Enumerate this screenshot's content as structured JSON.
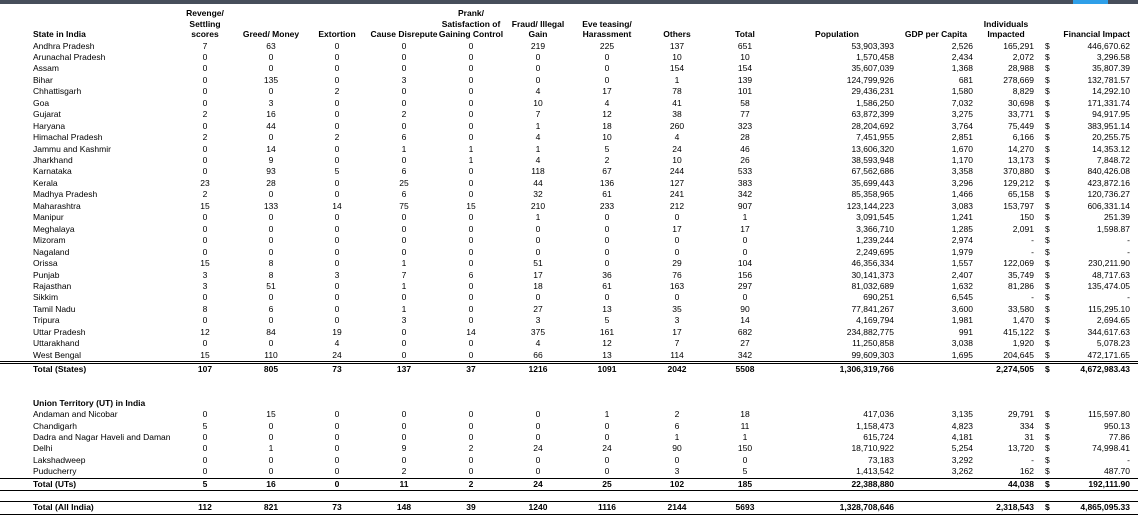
{
  "window": {
    "top_bar_color": "#474e5b",
    "scroll_thumb_color": "#2e9fe8"
  },
  "table": {
    "currency_symbol": "$",
    "columns": [
      {
        "key": "state",
        "label": "State in India"
      },
      {
        "key": "revenge-settling-scores",
        "label": "Revenge/ Settling\nscores"
      },
      {
        "key": "greed-money",
        "label": "Greed/ Money"
      },
      {
        "key": "extortion",
        "label": "Extortion"
      },
      {
        "key": "cause-disrepute",
        "label": "Cause Disrepute"
      },
      {
        "key": "prank-satisfaction-gaining-control",
        "label": "Prank/\nSatisfaction of\nGaining Control"
      },
      {
        "key": "fraud-illegal-gain",
        "label": "Fraud/ Illegal\nGain"
      },
      {
        "key": "eve-teasing-harassment",
        "label": "Eve teasing/\nHarassment"
      },
      {
        "key": "others",
        "label": "Others"
      },
      {
        "key": "total",
        "label": "Total"
      },
      {
        "key": "population",
        "label": "Population"
      },
      {
        "key": "gdp-per-capita",
        "label": "GDP per Capita"
      },
      {
        "key": "individuals-impacted",
        "label": "Individuals\nImpacted"
      },
      {
        "key": "financial-impact",
        "label": "Financial Impact"
      }
    ],
    "states_section": {
      "rows": [
        {
          "label": "Andhra Pradesh",
          "values": [
            "7",
            "63",
            "0",
            "0",
            "0",
            "219",
            "225",
            "137",
            "651",
            "53,903,393",
            "2,526",
            "165,291",
            "446,670.62"
          ]
        },
        {
          "label": "Arunachal Pradesh",
          "values": [
            "0",
            "0",
            "0",
            "0",
            "0",
            "0",
            "0",
            "10",
            "10",
            "1,570,458",
            "2,434",
            "2,072",
            "3,296.58"
          ]
        },
        {
          "label": "Assam",
          "values": [
            "0",
            "0",
            "0",
            "0",
            "0",
            "0",
            "0",
            "154",
            "154",
            "35,607,039",
            "1,368",
            "28,988",
            "35,807.39"
          ]
        },
        {
          "label": "Bihar",
          "values": [
            "0",
            "135",
            "0",
            "3",
            "0",
            "0",
            "0",
            "1",
            "139",
            "124,799,926",
            "681",
            "278,669",
            "132,781.57"
          ]
        },
        {
          "label": "Chhattisgarh",
          "values": [
            "0",
            "0",
            "2",
            "0",
            "0",
            "4",
            "17",
            "78",
            "101",
            "29,436,231",
            "1,580",
            "8,829",
            "14,292.10"
          ]
        },
        {
          "label": "Goa",
          "values": [
            "0",
            "3",
            "0",
            "0",
            "0",
            "10",
            "4",
            "41",
            "58",
            "1,586,250",
            "7,032",
            "30,698",
            "171,331.74"
          ]
        },
        {
          "label": "Gujarat",
          "values": [
            "2",
            "16",
            "0",
            "2",
            "0",
            "7",
            "12",
            "38",
            "77",
            "63,872,399",
            "3,275",
            "33,771",
            "94,917.95"
          ]
        },
        {
          "label": "Haryana",
          "values": [
            "0",
            "44",
            "0",
            "0",
            "0",
            "1",
            "18",
            "260",
            "323",
            "28,204,692",
            "3,764",
            "75,449",
            "383,951.14"
          ]
        },
        {
          "label": "Himachal Pradesh",
          "values": [
            "2",
            "0",
            "2",
            "6",
            "0",
            "4",
            "10",
            "4",
            "28",
            "7,451,955",
            "2,851",
            "6,166",
            "20,255.75"
          ]
        },
        {
          "label": "Jammu and Kashmir",
          "values": [
            "0",
            "14",
            "0",
            "1",
            "1",
            "1",
            "5",
            "24",
            "46",
            "13,606,320",
            "1,670",
            "14,270",
            "14,353.12"
          ]
        },
        {
          "label": "Jharkhand",
          "values": [
            "0",
            "9",
            "0",
            "0",
            "1",
            "4",
            "2",
            "10",
            "26",
            "38,593,948",
            "1,170",
            "13,173",
            "7,848.72"
          ]
        },
        {
          "label": "Karnataka",
          "values": [
            "0",
            "93",
            "5",
            "6",
            "0",
            "118",
            "67",
            "244",
            "533",
            "67,562,686",
            "3,358",
            "370,880",
            "840,426.08"
          ]
        },
        {
          "label": "Kerala",
          "values": [
            "23",
            "28",
            "0",
            "25",
            "0",
            "44",
            "136",
            "127",
            "383",
            "35,699,443",
            "3,296",
            "129,212",
            "423,872.16"
          ]
        },
        {
          "label": "Madhya Pradesh",
          "values": [
            "2",
            "0",
            "0",
            "6",
            "0",
            "32",
            "61",
            "241",
            "342",
            "85,358,965",
            "1,466",
            "65,158",
            "120,736.27"
          ]
        },
        {
          "label": "Maharashtra",
          "values": [
            "15",
            "133",
            "14",
            "75",
            "15",
            "210",
            "233",
            "212",
            "907",
            "123,144,223",
            "3,083",
            "153,797",
            "606,331.14"
          ]
        },
        {
          "label": "Manipur",
          "values": [
            "0",
            "0",
            "0",
            "0",
            "0",
            "1",
            "0",
            "0",
            "1",
            "3,091,545",
            "1,241",
            "150",
            "251.39"
          ]
        },
        {
          "label": "Meghalaya",
          "values": [
            "0",
            "0",
            "0",
            "0",
            "0",
            "0",
            "0",
            "17",
            "17",
            "3,366,710",
            "1,285",
            "2,091",
            "1,598.87"
          ]
        },
        {
          "label": "Mizoram",
          "values": [
            "0",
            "0",
            "0",
            "0",
            "0",
            "0",
            "0",
            "0",
            "0",
            "1,239,244",
            "2,974",
            "-",
            "-"
          ]
        },
        {
          "label": "Nagaland",
          "values": [
            "0",
            "0",
            "0",
            "0",
            "0",
            "0",
            "0",
            "0",
            "0",
            "2,249,695",
            "1,979",
            "-",
            "-"
          ]
        },
        {
          "label": "Orissa",
          "values": [
            "15",
            "8",
            "0",
            "1",
            "0",
            "51",
            "0",
            "29",
            "104",
            "46,356,334",
            "1,557",
            "122,069",
            "230,211.90"
          ]
        },
        {
          "label": "Punjab",
          "values": [
            "3",
            "8",
            "3",
            "7",
            "6",
            "17",
            "36",
            "76",
            "156",
            "30,141,373",
            "2,407",
            "35,749",
            "48,717.63"
          ]
        },
        {
          "label": "Rajasthan",
          "values": [
            "3",
            "51",
            "0",
            "1",
            "0",
            "18",
            "61",
            "163",
            "297",
            "81,032,689",
            "1,632",
            "81,286",
            "135,474.05"
          ]
        },
        {
          "label": "Sikkim",
          "values": [
            "0",
            "0",
            "0",
            "0",
            "0",
            "0",
            "0",
            "0",
            "0",
            "690,251",
            "6,545",
            "-",
            "-"
          ]
        },
        {
          "label": "Tamil Nadu",
          "values": [
            "8",
            "6",
            "0",
            "1",
            "0",
            "27",
            "13",
            "35",
            "90",
            "77,841,267",
            "3,600",
            "33,580",
            "115,295.10"
          ]
        },
        {
          "label": "Tripura",
          "values": [
            "0",
            "0",
            "0",
            "3",
            "0",
            "3",
            "5",
            "3",
            "14",
            "4,169,794",
            "1,981",
            "1,470",
            "2,694.65"
          ]
        },
        {
          "label": "Uttar Pradesh",
          "values": [
            "12",
            "84",
            "19",
            "0",
            "14",
            "375",
            "161",
            "17",
            "682",
            "234,882,775",
            "991",
            "415,122",
            "344,617.63"
          ]
        },
        {
          "label": "Uttarakhand",
          "values": [
            "0",
            "0",
            "4",
            "0",
            "0",
            "4",
            "12",
            "7",
            "27",
            "11,250,858",
            "3,038",
            "1,920",
            "5,078.23"
          ]
        },
        {
          "label": "West Bengal",
          "values": [
            "15",
            "110",
            "24",
            "0",
            "0",
            "66",
            "13",
            "114",
            "342",
            "99,609,303",
            "1,695",
            "204,645",
            "472,171.65"
          ]
        }
      ],
      "total": {
        "label": "Total (States)",
        "values": [
          "107",
          "805",
          "73",
          "137",
          "37",
          "1216",
          "1091",
          "2042",
          "5508",
          "1,306,319,766",
          "",
          "2,274,505",
          "4,672,983.43"
        ]
      }
    },
    "ut_section": {
      "header": "Union Territory (UT) in India",
      "rows": [
        {
          "label": "Andaman and Nicobar",
          "values": [
            "0",
            "15",
            "0",
            "0",
            "0",
            "0",
            "1",
            "2",
            "18",
            "417,036",
            "3,135",
            "29,791",
            "115,597.80"
          ]
        },
        {
          "label": "Chandigarh",
          "values": [
            "5",
            "0",
            "0",
            "0",
            "0",
            "0",
            "0",
            "6",
            "11",
            "1,158,473",
            "4,823",
            "334",
            "950.13"
          ]
        },
        {
          "label": "Dadra and Nagar Haveli and Daman and Diu",
          "values": [
            "0",
            "0",
            "0",
            "0",
            "0",
            "0",
            "0",
            "1",
            "1",
            "615,724",
            "4,181",
            "31",
            "77.86"
          ]
        },
        {
          "label": "Delhi",
          "values": [
            "0",
            "1",
            "0",
            "9",
            "2",
            "24",
            "24",
            "90",
            "150",
            "18,710,922",
            "5,254",
            "13,720",
            "74,998.41"
          ]
        },
        {
          "label": "Lakshadweep",
          "values": [
            "0",
            "0",
            "0",
            "0",
            "0",
            "0",
            "0",
            "0",
            "0",
            "73,183",
            "3,292",
            "-",
            "-"
          ]
        },
        {
          "label": "Puducherry",
          "values": [
            "0",
            "0",
            "0",
            "2",
            "0",
            "0",
            "0",
            "3",
            "5",
            "1,413,542",
            "3,262",
            "162",
            "487.70"
          ]
        }
      ],
      "total": {
        "label": "Total (UTs)",
        "values": [
          "5",
          "16",
          "0",
          "11",
          "2",
          "24",
          "25",
          "102",
          "185",
          "22,388,880",
          "",
          "44,038",
          "192,111.90"
        ]
      }
    },
    "grand_total": {
      "label": "Total (All India)",
      "values": [
        "112",
        "821",
        "73",
        "148",
        "39",
        "1240",
        "1116",
        "2144",
        "5693",
        "1,328,708,646",
        "",
        "2,318,543",
        "4,865,095.33"
      ]
    }
  }
}
